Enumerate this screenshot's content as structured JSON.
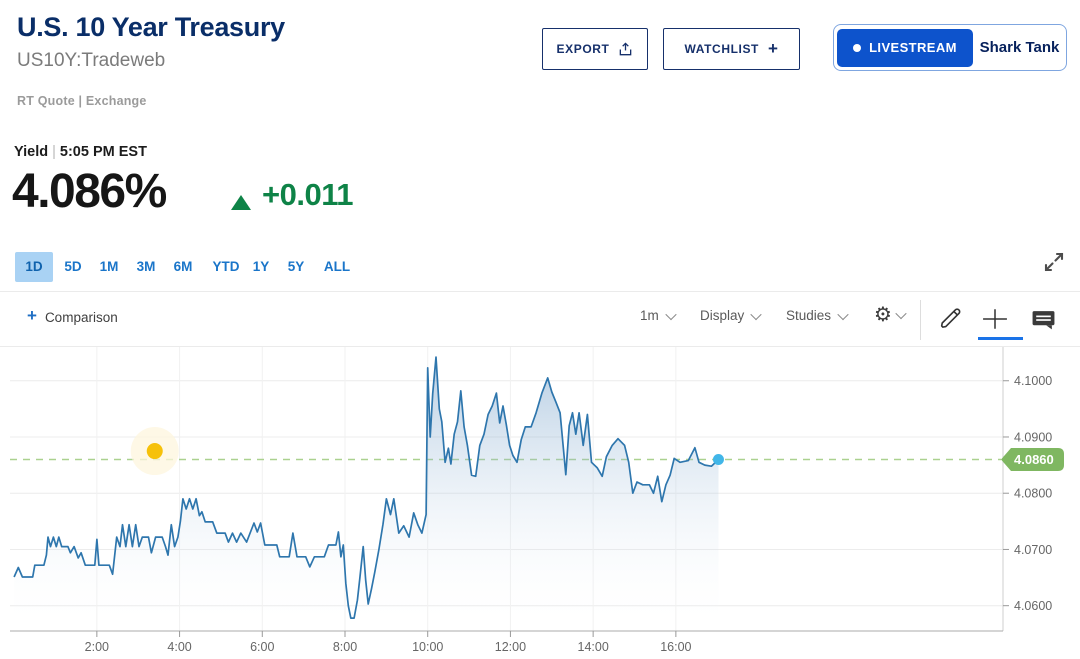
{
  "header": {
    "title": "U.S. 10 Year Treasury",
    "symbol": "US10Y:Tradeweb",
    "quote_source": "RT Quote | Exchange"
  },
  "buttons": {
    "export_label": "EXPORT",
    "watchlist_label": "WATCHLIST",
    "livestream_label": "LIVESTREAM",
    "livestream_show": "Shark Tank"
  },
  "quote": {
    "field": "Yield",
    "separator": "|",
    "time": "5:05 PM EST",
    "value": "4.086%",
    "change": "+0.011",
    "direction": "up"
  },
  "range_tabs": {
    "items": [
      "1D",
      "5D",
      "1M",
      "3M",
      "6M",
      "YTD",
      "1Y",
      "5Y",
      "ALL"
    ],
    "selected": "1D"
  },
  "toolbar": {
    "comparison_label": "Comparison",
    "interval_label": "1m",
    "display_label": "Display",
    "studies_label": "Studies"
  },
  "icons": {
    "comparison_plus": "+",
    "watchlist_plus": "+",
    "gear": "⚙",
    "live_dot": "●"
  },
  "colors": {
    "brand_navy": "#0a2e68",
    "livestream_blue": "#0d53cc",
    "tab_blue": "#1a75c9",
    "positive_green": "#0e8347",
    "line_blue": "#2e76ad",
    "dashed_green": "#abd18f",
    "tag_green": "#7fb761",
    "marker_yellow": "#f6c10a",
    "end_dot_cyan": "#41b6e8",
    "axis_text": "#666666"
  },
  "chart_data": {
    "type": "area",
    "title": "",
    "xlabel": "",
    "ylabel": "",
    "grid": true,
    "x_unit": "hours (exchange time)",
    "xlim_hours": [
      -0.1,
      23.91
    ],
    "ylim": [
      4.0555,
      4.106
    ],
    "x_ticks": [
      {
        "t": 2,
        "label": "2:00"
      },
      {
        "t": 4,
        "label": "4:00"
      },
      {
        "t": 6,
        "label": "6:00"
      },
      {
        "t": 8,
        "label": "8:00"
      },
      {
        "t": 10,
        "label": "10:00"
      },
      {
        "t": 12,
        "label": "12:00"
      },
      {
        "t": 14,
        "label": "14:00"
      },
      {
        "t": 16,
        "label": "16:00"
      }
    ],
    "y_ticks": [
      {
        "v": 4.1,
        "label": "4.1000"
      },
      {
        "v": 4.09,
        "label": "4.0900"
      },
      {
        "v": 4.08,
        "label": "4.0800"
      },
      {
        "v": 4.07,
        "label": "4.0700"
      },
      {
        "v": 4.06,
        "label": "4.0600"
      }
    ],
    "last_price": {
      "value": 4.086,
      "label": "4.0860"
    },
    "event_marker": {
      "t": 3.4,
      "v": 4.0875
    },
    "series": [
      {
        "name": "US10Y yield",
        "points": [
          [
            0.0,
            4.0651
          ],
          [
            0.1,
            4.0668
          ],
          [
            0.2,
            4.0651
          ],
          [
            0.45,
            4.0651
          ],
          [
            0.5,
            4.0672
          ],
          [
            0.72,
            4.0672
          ],
          [
            0.78,
            4.069
          ],
          [
            0.82,
            4.0722
          ],
          [
            0.88,
            4.0705
          ],
          [
            0.95,
            4.0722
          ],
          [
            1.02,
            4.0705
          ],
          [
            1.08,
            4.0722
          ],
          [
            1.15,
            4.0705
          ],
          [
            1.3,
            4.0705
          ],
          [
            1.36,
            4.0694
          ],
          [
            1.45,
            4.0705
          ],
          [
            1.55,
            4.0685
          ],
          [
            1.62,
            4.0694
          ],
          [
            1.72,
            4.0672
          ],
          [
            1.95,
            4.0672
          ],
          [
            2.0,
            4.0718
          ],
          [
            2.05,
            4.0672
          ],
          [
            2.3,
            4.0672
          ],
          [
            2.38,
            4.0656
          ],
          [
            2.48,
            4.0722
          ],
          [
            2.56,
            4.0705
          ],
          [
            2.62,
            4.0744
          ],
          [
            2.7,
            4.0705
          ],
          [
            2.78,
            4.0744
          ],
          [
            2.86,
            4.0705
          ],
          [
            2.94,
            4.0744
          ],
          [
            3.02,
            4.0705
          ],
          [
            3.1,
            4.0722
          ],
          [
            3.25,
            4.0722
          ],
          [
            3.32,
            4.0694
          ],
          [
            3.42,
            4.0722
          ],
          [
            3.58,
            4.0722
          ],
          [
            3.66,
            4.0705
          ],
          [
            3.72,
            4.069
          ],
          [
            3.8,
            4.0744
          ],
          [
            3.88,
            4.0705
          ],
          [
            3.96,
            4.0722
          ],
          [
            4.02,
            4.075
          ],
          [
            4.08,
            4.079
          ],
          [
            4.16,
            4.0772
          ],
          [
            4.24,
            4.079
          ],
          [
            4.32,
            4.0772
          ],
          [
            4.4,
            4.079
          ],
          [
            4.48,
            4.076
          ],
          [
            4.54,
            4.0767
          ],
          [
            4.62,
            4.0749
          ],
          [
            4.8,
            4.0749
          ],
          [
            4.9,
            4.0729
          ],
          [
            5.1,
            4.0729
          ],
          [
            5.18,
            4.0713
          ],
          [
            5.28,
            4.0729
          ],
          [
            5.38,
            4.0713
          ],
          [
            5.48,
            4.0729
          ],
          [
            5.62,
            4.0713
          ],
          [
            5.8,
            4.0747
          ],
          [
            5.88,
            4.0731
          ],
          [
            5.96,
            4.0747
          ],
          [
            6.06,
            4.0708
          ],
          [
            6.35,
            4.0708
          ],
          [
            6.42,
            4.0687
          ],
          [
            6.65,
            4.0687
          ],
          [
            6.74,
            4.0729
          ],
          [
            6.84,
            4.0687
          ],
          [
            7.05,
            4.0687
          ],
          [
            7.15,
            4.0669
          ],
          [
            7.26,
            4.0687
          ],
          [
            7.5,
            4.0687
          ],
          [
            7.6,
            4.0708
          ],
          [
            7.78,
            4.0708
          ],
          [
            7.84,
            4.0731
          ],
          [
            7.9,
            4.0687
          ],
          [
            7.96,
            4.0708
          ],
          [
            8.02,
            4.064
          ],
          [
            8.08,
            4.06
          ],
          [
            8.14,
            4.0578
          ],
          [
            8.22,
            4.0578
          ],
          [
            8.3,
            4.061
          ],
          [
            8.36,
            4.065
          ],
          [
            8.44,
            4.0705
          ],
          [
            8.5,
            4.0645
          ],
          [
            8.56,
            4.0603
          ],
          [
            8.64,
            4.063
          ],
          [
            8.72,
            4.066
          ],
          [
            8.82,
            4.07
          ],
          [
            8.92,
            4.0745
          ],
          [
            9.0,
            4.079
          ],
          [
            9.1,
            4.0762
          ],
          [
            9.18,
            4.079
          ],
          [
            9.3,
            4.0729
          ],
          [
            9.42,
            4.0742
          ],
          [
            9.55,
            4.0722
          ],
          [
            9.66,
            4.0765
          ],
          [
            9.76,
            4.0744
          ],
          [
            9.86,
            4.0729
          ],
          [
            9.96,
            4.0762
          ],
          [
            10.0,
            4.1023
          ],
          [
            10.06,
            4.09
          ],
          [
            10.12,
            4.0977
          ],
          [
            10.2,
            4.1042
          ],
          [
            10.28,
            4.095
          ],
          [
            10.34,
            4.0927
          ],
          [
            10.42,
            4.0855
          ],
          [
            10.5,
            4.088
          ],
          [
            10.56,
            4.0852
          ],
          [
            10.64,
            4.0905
          ],
          [
            10.72,
            4.0927
          ],
          [
            10.8,
            4.0982
          ],
          [
            10.88,
            4.0918
          ],
          [
            10.96,
            4.0885
          ],
          [
            11.06,
            4.0832
          ],
          [
            11.16,
            4.083
          ],
          [
            11.26,
            4.0885
          ],
          [
            11.36,
            4.0905
          ],
          [
            11.46,
            4.094
          ],
          [
            11.56,
            4.0955
          ],
          [
            11.66,
            4.0978
          ],
          [
            11.74,
            4.0925
          ],
          [
            11.82,
            4.0955
          ],
          [
            11.9,
            4.0922
          ],
          [
            11.98,
            4.0885
          ],
          [
            12.06,
            4.0867
          ],
          [
            12.16,
            4.0855
          ],
          [
            12.26,
            4.0895
          ],
          [
            12.36,
            4.0918
          ],
          [
            12.5,
            4.0918
          ],
          [
            12.62,
            4.0943
          ],
          [
            12.76,
            4.0978
          ],
          [
            12.9,
            4.1005
          ],
          [
            13.0,
            4.098
          ],
          [
            13.1,
            4.0962
          ],
          [
            13.2,
            4.0943
          ],
          [
            13.34,
            4.0833
          ],
          [
            13.42,
            4.092
          ],
          [
            13.5,
            4.0943
          ],
          [
            13.58,
            4.0905
          ],
          [
            13.66,
            4.0943
          ],
          [
            13.76,
            4.0885
          ],
          [
            13.86,
            4.094
          ],
          [
            13.96,
            4.0855
          ],
          [
            14.1,
            4.0845
          ],
          [
            14.22,
            4.083
          ],
          [
            14.32,
            4.0865
          ],
          [
            14.46,
            4.0885
          ],
          [
            14.6,
            4.0897
          ],
          [
            14.76,
            4.0885
          ],
          [
            14.86,
            4.0855
          ],
          [
            14.96,
            4.08
          ],
          [
            15.06,
            4.082
          ],
          [
            15.2,
            4.0815
          ],
          [
            15.36,
            4.0815
          ],
          [
            15.46,
            4.08
          ],
          [
            15.56,
            4.083
          ],
          [
            15.66,
            4.0785
          ],
          [
            15.76,
            4.0815
          ],
          [
            15.86,
            4.0832
          ],
          [
            15.96,
            4.0862
          ],
          [
            16.1,
            4.0855
          ],
          [
            16.3,
            4.0858
          ],
          [
            16.46,
            4.0881
          ],
          [
            16.56,
            4.0855
          ],
          [
            16.7,
            4.085
          ],
          [
            16.86,
            4.0848
          ],
          [
            17.03,
            4.086
          ]
        ]
      }
    ]
  }
}
